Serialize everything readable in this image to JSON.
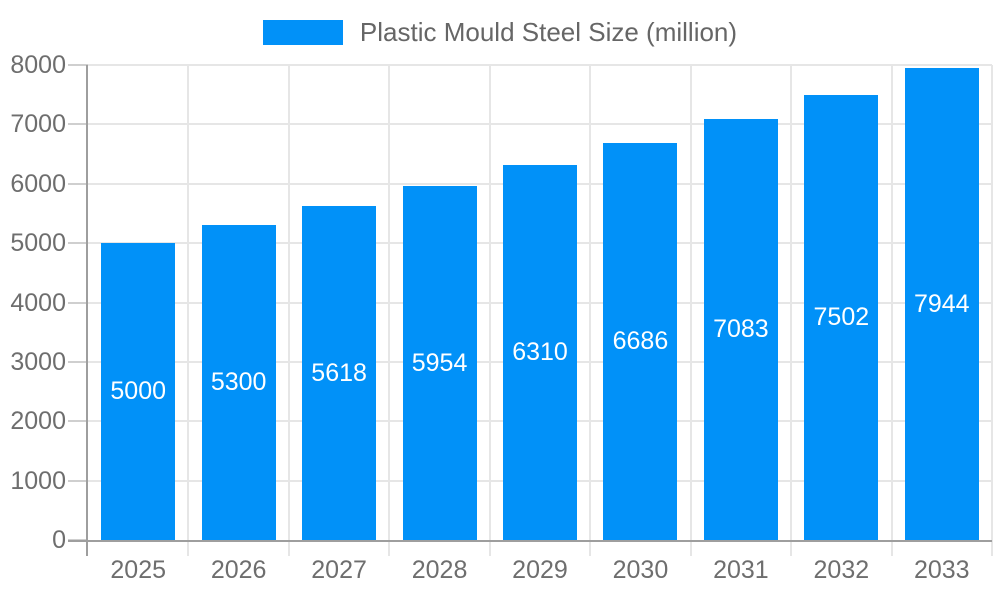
{
  "chart_data": {
    "type": "bar",
    "title": "Plastic Mould Steel Size (million)",
    "legend": {
      "label": "Plastic Mould Steel Size (million)",
      "position": "top",
      "swatch_color": "#0191F8"
    },
    "categories": [
      "2025",
      "2026",
      "2027",
      "2028",
      "2029",
      "2030",
      "2031",
      "2032",
      "2033"
    ],
    "values": [
      5000,
      5300,
      5618,
      5954,
      6310,
      6686,
      7083,
      7502,
      7944
    ],
    "bar_value_labels": [
      "5000",
      "5300",
      "5618",
      "5954",
      "6310",
      "6686",
      "7083",
      "7502",
      "7944"
    ],
    "xlabel": "",
    "ylabel": "",
    "ylim": [
      0,
      8000
    ],
    "yticks": [
      0,
      1000,
      2000,
      3000,
      4000,
      5000,
      6000,
      7000,
      8000
    ],
    "grid": true,
    "colors": {
      "bar": "#0191F8",
      "grid": "#E6E6E6",
      "tick": "#CFCFCF",
      "axis": "#9E9E9E",
      "text": "#6E6E6E",
      "legend_text": "#666666",
      "bar_value_text": "#FFFFFF",
      "background": "#FFFFFF"
    }
  }
}
